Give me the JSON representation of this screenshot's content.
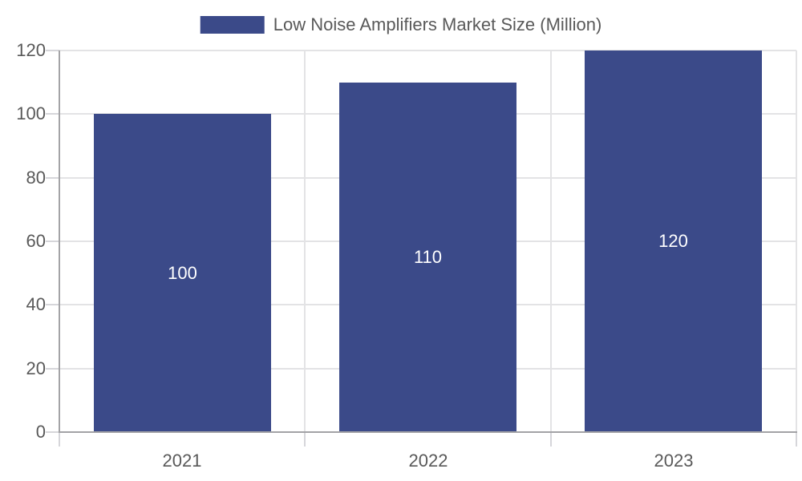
{
  "chart_data": {
    "type": "bar",
    "title": "Low Noise Amplifiers Market Size (Million)",
    "categories": [
      "2021",
      "2022",
      "2023"
    ],
    "values": [
      100,
      110,
      120
    ],
    "bar_value_labels": [
      "100",
      "110",
      "120"
    ],
    "xlabel": "",
    "ylabel": "",
    "ylim": [
      0,
      120
    ],
    "yticks": [
      0,
      20,
      40,
      60,
      80,
      100,
      120
    ],
    "grid": "on",
    "legend_position": "top-center",
    "colors": {
      "bar": "#3B4A89",
      "grid": "#E3E3E5",
      "tick": "#D6D6DA",
      "axis": "#A3A3A6",
      "tick_label": "#595959",
      "bar_label": "#FFFFFF",
      "background": "#FFFFFF"
    }
  }
}
